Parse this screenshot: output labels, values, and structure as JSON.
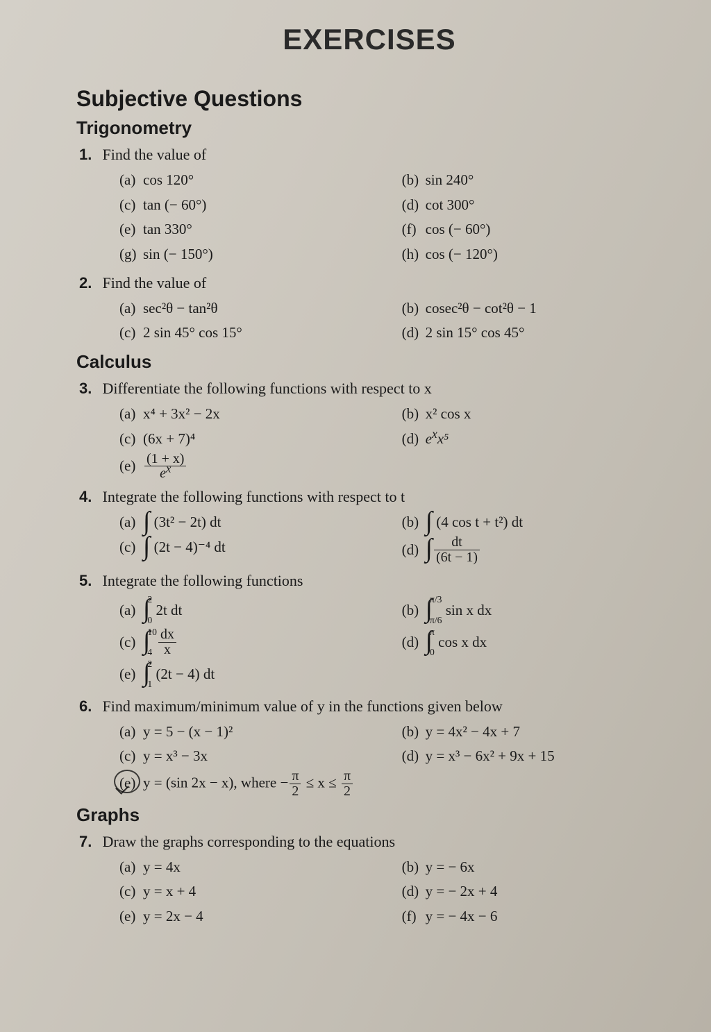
{
  "page": {
    "background_gradient": [
      "#d4d0c8",
      "#cec9c0",
      "#c2bdb3",
      "#b8b2a7"
    ],
    "text_color": "#1a1a1a",
    "top_header_text": "EXERCISES",
    "section_heading": "Subjective Questions",
    "sections": {
      "trigonometry": {
        "heading": "Trigonometry",
        "q1": {
          "num": "1.",
          "text": "Find the value of",
          "a": "cos 120°",
          "b": "sin 240°",
          "c": "tan (− 60°)",
          "d": "cot 300°",
          "e": "tan 330°",
          "f": "cos (− 60°)",
          "g": "sin (− 150°)",
          "h": "cos (− 120°)"
        },
        "q2": {
          "num": "2.",
          "text": "Find the value of",
          "a": "sec²θ − tan²θ",
          "b": "cosec²θ − cot²θ − 1",
          "c": "2 sin 45° cos 15°",
          "d": "2 sin 15° cos 45°"
        }
      },
      "calculus": {
        "heading": "Calculus",
        "q3": {
          "num": "3.",
          "text": "Differentiate the following functions with respect to x",
          "a": "x⁴ + 3x² − 2x",
          "b": "x² cos x",
          "c": "(6x + 7)⁴",
          "d_pre": "e",
          "d_sup": "x",
          "d_post": "x⁵",
          "e_num": "(1 + x)",
          "e_den_pre": "e",
          "e_den_sup": "x"
        },
        "q4": {
          "num": "4.",
          "text": "Integrate the following functions with respect to t",
          "a": "(3t² − 2t) dt",
          "b": "(4 cos t + t²) dt",
          "c": "(2t − 4)⁻⁴ dt",
          "d_num": "dt",
          "d_den": "(6t − 1)"
        },
        "q5": {
          "num": "5.",
          "text": "Integrate the following functions",
          "a_up": "2",
          "a_lo": "0",
          "a_body": "2t dt",
          "b_up": "π/3",
          "b_lo": "π/6",
          "b_body": "sin x dx",
          "c_up": "10",
          "c_lo": "4",
          "c_num": "dx",
          "c_den": "x",
          "d_up": "π",
          "d_lo": "0",
          "d_body": "cos x dx",
          "e_up": "2",
          "e_lo": "1",
          "e_body": "(2t − 4) dt"
        },
        "q6": {
          "num": "6.",
          "text": "Find maximum/minimum value of y in the functions given below",
          "a": "y = 5 − (x − 1)²",
          "b": "y = 4x² − 4x + 7",
          "c": "y = x³ − 3x",
          "d": "y = x³ − 6x² + 9x + 15",
          "e_pre": "y = (sin 2x − x), where −",
          "e_f1_num": "π",
          "e_f1_den": "2",
          "e_mid": " ≤ x ≤ ",
          "e_f2_num": "π",
          "e_f2_den": "2"
        }
      },
      "graphs": {
        "heading": "Graphs",
        "q7": {
          "num": "7.",
          "text": "Draw the graphs corresponding to the equations",
          "a": "y = 4x",
          "b": "y = − 6x",
          "c": "y = x + 4",
          "d": "y = − 2x + 4",
          "e": "y = 2x − 4",
          "f": "y = − 4x − 6"
        }
      }
    },
    "labels": {
      "a": "(a)",
      "b": "(b)",
      "c": "(c)",
      "d": "(d)",
      "e": "(e)",
      "f": "(f)",
      "g": "(g)",
      "h": "(h)"
    },
    "fonts": {
      "heading_family": "Arial, Helvetica, sans-serif",
      "body_family": "Times New Roman, Times, serif",
      "section_heading_size_pt": 24,
      "subsection_heading_size_pt": 20,
      "question_size_pt": 17,
      "option_size_pt": 16
    }
  }
}
